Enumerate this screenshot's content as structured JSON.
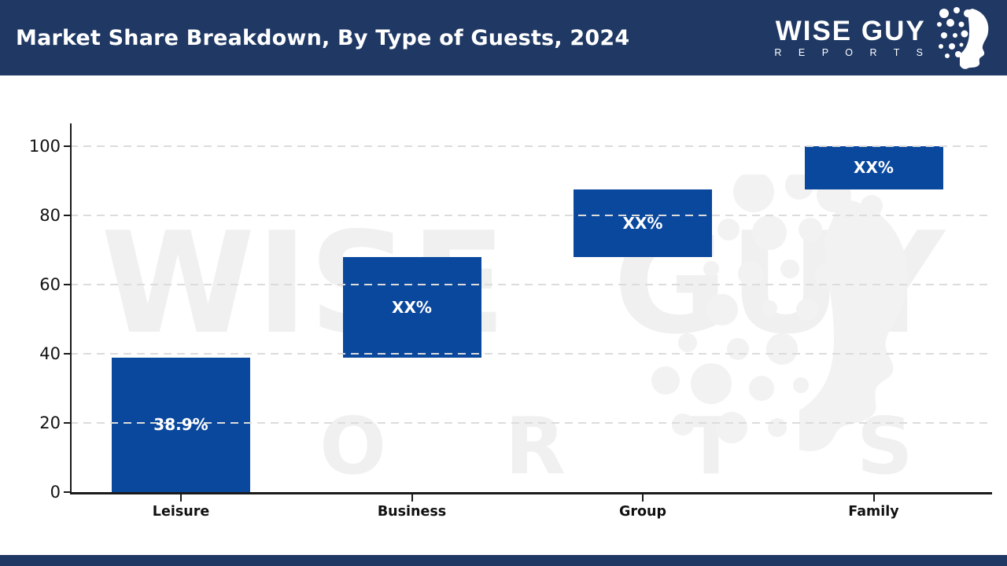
{
  "header": {
    "title": "Market Share Breakdown, By Type of Guests, 2024",
    "logo": {
      "name": "WISE GUY",
      "sub": "R E P O R T S"
    }
  },
  "watermark": {
    "line1": "WISE GUY",
    "line2": "P O R T S"
  },
  "chart_data": {
    "type": "bar",
    "subtype": "floating-waterfall",
    "categories": [
      "Leisure",
      "Business",
      "Group",
      "Family"
    ],
    "segments": [
      {
        "category": "Leisure",
        "start": 0,
        "end": 38.9,
        "label": "38.9%",
        "value_pct": 38.9
      },
      {
        "category": "Business",
        "start": 38.9,
        "end": 68.0,
        "label": "XX%",
        "value_pct_est": 29.1
      },
      {
        "category": "Group",
        "start": 68.0,
        "end": 87.6,
        "label": "XX%",
        "value_pct_est": 19.6
      },
      {
        "category": "Family",
        "start": 87.6,
        "end": 100.0,
        "label": "XX%",
        "value_pct_est": 12.4
      }
    ],
    "ylim": [
      0,
      100
    ],
    "yticks": [
      0,
      20,
      40,
      60,
      80,
      100
    ],
    "xlabel": "",
    "ylabel": "",
    "grid": {
      "horizontal": true,
      "style": "dashed",
      "color": "#dcdcdc"
    },
    "legend": null,
    "bar_color": "#0a489d",
    "bar_label_color": "#ffffff"
  },
  "colors": {
    "header_bg": "#1f3864",
    "footer_bg": "#1f3864",
    "bar": "#0a489d",
    "axis": "#1a1a1a",
    "grid": "#dcdcdc",
    "watermark": "#f0f0f0"
  }
}
